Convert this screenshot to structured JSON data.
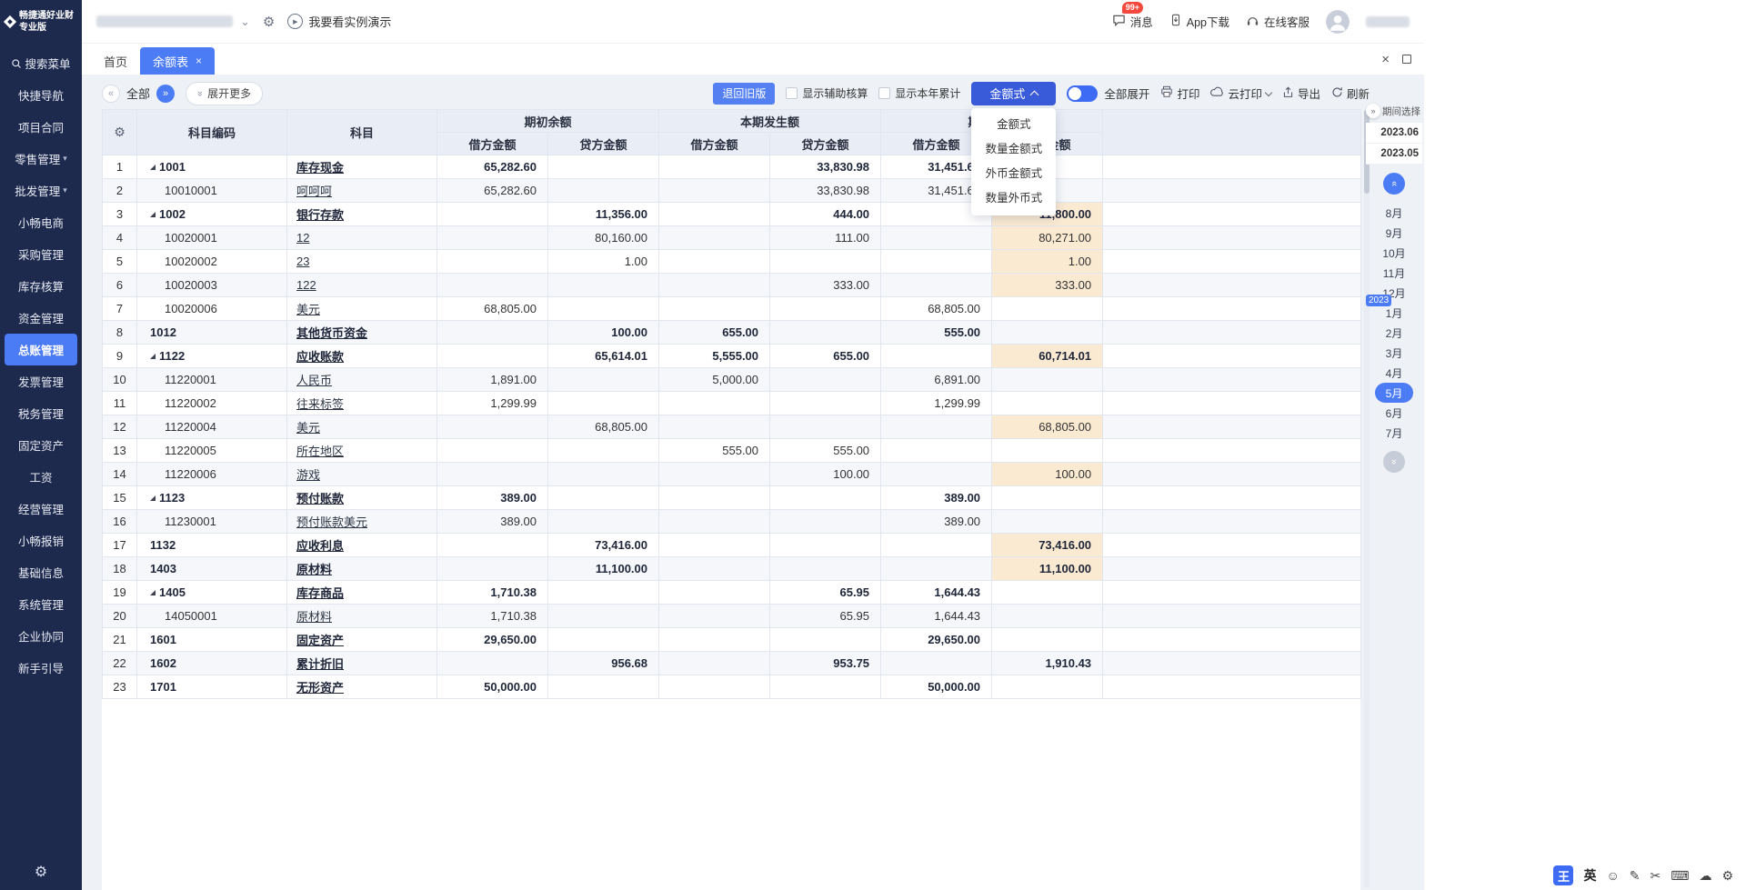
{
  "app": {
    "logo_title": "畅捷通好业财",
    "logo_subtitle": "专业版"
  },
  "icons": {
    "gear": "⚙",
    "chevron_down": "⌄",
    "triangle_down": "▾",
    "prev": "«",
    "next": "»",
    "close": "×",
    "play": "▶",
    "emoji": "☺",
    "pen": "✎",
    "scissors": "✂",
    "keyboard": "⌨",
    "cloud": "☁",
    "settings": "⚙"
  },
  "colors": {
    "accent": "#4B7BF5",
    "format_button": "#3A5BD9",
    "abnormal_cell": "#FBEAD2",
    "sidebar": "#1E2A4D",
    "badge": "#F4493C"
  },
  "sidebar": {
    "items": [
      {
        "label": "搜索菜单",
        "icon": "search"
      },
      {
        "label": "快捷导航"
      },
      {
        "label": "项目合同"
      },
      {
        "label": "零售管理",
        "arrow": true
      },
      {
        "label": "批发管理",
        "arrow": true
      },
      {
        "label": "小畅电商"
      },
      {
        "label": "采购管理"
      },
      {
        "label": "库存核算"
      },
      {
        "label": "资金管理"
      },
      {
        "label": "总账管理",
        "selected": true
      },
      {
        "label": "发票管理"
      },
      {
        "label": "税务管理"
      },
      {
        "label": "固定资产"
      },
      {
        "label": "工资"
      },
      {
        "label": "经营管理"
      },
      {
        "label": "小畅报销"
      },
      {
        "label": "基础信息"
      },
      {
        "label": "系统管理"
      },
      {
        "label": "企业协同"
      },
      {
        "label": "新手引导"
      }
    ]
  },
  "topbar": {
    "demo_link": "我要看实例演示",
    "messages": "消息",
    "messages_badge": "99+",
    "app_download": "App下载",
    "support": "在线客服"
  },
  "tabs": [
    {
      "label": "首页",
      "active": false
    },
    {
      "label": "余额表",
      "active": true,
      "closable": true
    }
  ],
  "toolbar": {
    "scope_label": "全部",
    "expand_more": "展开更多",
    "back_old": "退回旧版",
    "chk_aux": "显示辅助核算",
    "chk_ytd": "显示本年累计",
    "format_btn": "金额式",
    "format_menu": [
      {
        "label": "金额式",
        "current": true
      },
      {
        "label": "数量金额式"
      },
      {
        "label": "外币金额式"
      },
      {
        "label": "数量外币式"
      }
    ],
    "toggle_label": "全部展开",
    "print": "打印",
    "cloud_print": "云打印",
    "export": "导出",
    "refresh": "刷新"
  },
  "table": {
    "headers": {
      "code": "科目编码",
      "name": "科目",
      "groups": [
        "期初余额",
        "本期发生额",
        "期末余额"
      ],
      "sub": [
        "借方金额",
        "贷方金额"
      ]
    },
    "rows": [
      {
        "num": 1,
        "code": "1001",
        "name": "库存现金",
        "level": 1,
        "tri": true,
        "cells": [
          "65,282.60",
          "",
          "",
          "33,830.98",
          "31,451.62",
          ""
        ]
      },
      {
        "num": 2,
        "code": "10010001",
        "name": "呵呵呵",
        "level": 2,
        "cells": [
          "65,282.60",
          "",
          "",
          "33,830.98",
          "31,451.62",
          ""
        ]
      },
      {
        "num": 3,
        "code": "1002",
        "name": "银行存款",
        "level": 1,
        "tri": true,
        "hl": true,
        "cells": [
          "",
          "11,356.00",
          "",
          "444.00",
          "",
          "11,800.00"
        ]
      },
      {
        "num": 4,
        "code": "10020001",
        "name": "12",
        "level": 2,
        "hl": true,
        "cells": [
          "",
          "80,160.00",
          "",
          "111.00",
          "",
          "80,271.00"
        ]
      },
      {
        "num": 5,
        "code": "10020002",
        "name": "23",
        "level": 2,
        "hl": true,
        "cells": [
          "",
          "1.00",
          "",
          "",
          "",
          "1.00"
        ]
      },
      {
        "num": 6,
        "code": "10020003",
        "name": "122",
        "level": 2,
        "hl": true,
        "cells": [
          "",
          "",
          "",
          "333.00",
          "",
          "333.00"
        ]
      },
      {
        "num": 7,
        "code": "10020006",
        "name": "美元",
        "level": 2,
        "cells": [
          "68,805.00",
          "",
          "",
          "",
          "68,805.00",
          ""
        ]
      },
      {
        "num": 8,
        "code": "1012",
        "name": "其他货币资金",
        "level": 1,
        "cells": [
          "",
          "100.00",
          "655.00",
          "",
          "555.00",
          ""
        ]
      },
      {
        "num": 9,
        "code": "1122",
        "name": "应收账款",
        "level": 1,
        "tri": true,
        "hl": true,
        "cells": [
          "",
          "65,614.01",
          "5,555.00",
          "655.00",
          "",
          "60,714.01"
        ]
      },
      {
        "num": 10,
        "code": "11220001",
        "name": "人民币",
        "level": 2,
        "cells": [
          "1,891.00",
          "",
          "5,000.00",
          "",
          "6,891.00",
          ""
        ]
      },
      {
        "num": 11,
        "code": "11220002",
        "name": "往来标签",
        "level": 2,
        "cells": [
          "1,299.99",
          "",
          "",
          "",
          "1,299.99",
          ""
        ]
      },
      {
        "num": 12,
        "code": "11220004",
        "name": "美元",
        "level": 2,
        "hl": true,
        "cells": [
          "",
          "68,805.00",
          "",
          "",
          "",
          "68,805.00"
        ]
      },
      {
        "num": 13,
        "code": "11220005",
        "name": "所在地区",
        "level": 2,
        "cells": [
          "",
          "",
          "555.00",
          "555.00",
          "",
          ""
        ]
      },
      {
        "num": 14,
        "code": "11220006",
        "name": "游戏",
        "level": 2,
        "hl": true,
        "cells": [
          "",
          "",
          "",
          "100.00",
          "",
          "100.00"
        ]
      },
      {
        "num": 15,
        "code": "1123",
        "name": "预付账款",
        "level": 1,
        "tri": true,
        "cells": [
          "389.00",
          "",
          "",
          "",
          "389.00",
          ""
        ]
      },
      {
        "num": 16,
        "code": "11230001",
        "name": "预付账款美元",
        "level": 2,
        "cells": [
          "389.00",
          "",
          "",
          "",
          "389.00",
          ""
        ]
      },
      {
        "num": 17,
        "code": "1132",
        "name": "应收利息",
        "level": 1,
        "hl": true,
        "cells": [
          "",
          "73,416.00",
          "",
          "",
          "",
          "73,416.00"
        ]
      },
      {
        "num": 18,
        "code": "1403",
        "name": "原材料",
        "level": 1,
        "hl": true,
        "cells": [
          "",
          "11,100.00",
          "",
          "",
          "",
          "11,100.00"
        ]
      },
      {
        "num": 19,
        "code": "1405",
        "name": "库存商品",
        "level": 1,
        "tri": true,
        "cells": [
          "1,710.38",
          "",
          "",
          "65.95",
          "1,644.43",
          ""
        ]
      },
      {
        "num": 20,
        "code": "14050001",
        "name": "原材料",
        "level": 2,
        "cells": [
          "1,710.38",
          "",
          "",
          "65.95",
          "1,644.43",
          ""
        ]
      },
      {
        "num": 21,
        "code": "1601",
        "name": "固定资产",
        "level": 1,
        "cells": [
          "29,650.00",
          "",
          "",
          "",
          "29,650.00",
          ""
        ]
      },
      {
        "num": 22,
        "code": "1602",
        "name": "累计折旧",
        "level": 1,
        "cells": [
          "",
          "956.68",
          "",
          "953.75",
          "",
          "1,910.43"
        ]
      },
      {
        "num": 23,
        "code": "1701",
        "name": "无形资产",
        "level": 1,
        "cells": [
          "50,000.00",
          "",
          "",
          "",
          "50,000.00",
          ""
        ]
      }
    ]
  },
  "period_panel": {
    "title": "期间选择",
    "periods": [
      "2023.06",
      "2023.05"
    ],
    "year_badge": "2023",
    "year_badge_before_index": 5,
    "months": [
      "8月",
      "9月",
      "10月",
      "11月",
      "12月",
      "1月",
      "2月",
      "3月",
      "4月",
      "5月",
      "6月",
      "7月"
    ],
    "selected_month": "5月"
  },
  "ime": {
    "logo": "王",
    "mode": "英"
  }
}
